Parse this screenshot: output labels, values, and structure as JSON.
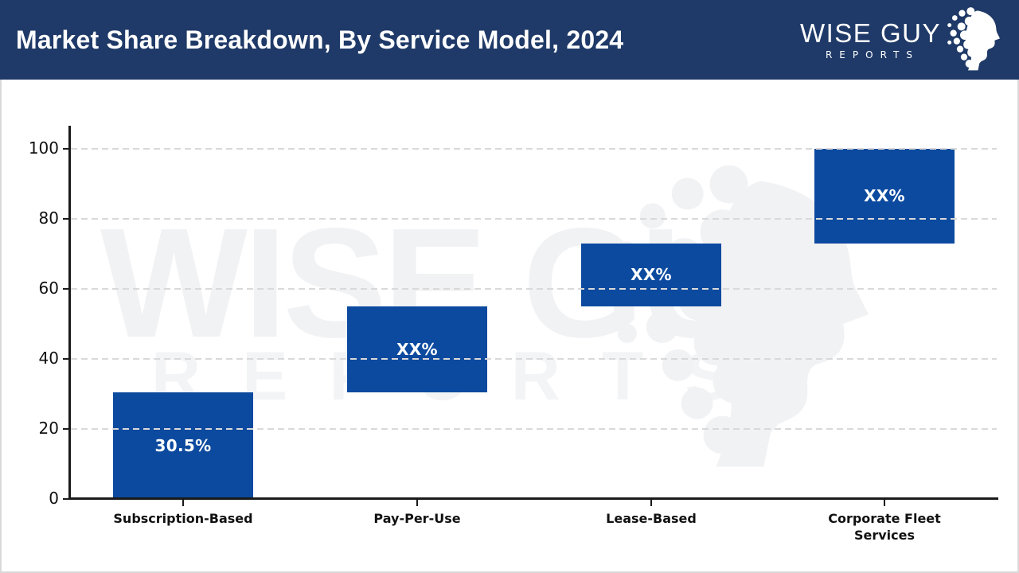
{
  "header": {
    "title": "Market Share Breakdown, By Service Model, 2024",
    "bg_color": "#1f3a68",
    "logo": {
      "name": "WISE GUY",
      "sub": "REPORTS",
      "face_icon": "dotted-face-profile"
    }
  },
  "watermark": {
    "name": "WISE GUY",
    "sub": "REPORTS",
    "face_icon": "dotted-face-profile"
  },
  "chart_data": {
    "type": "bar",
    "variant": "floating-segment-waterfall",
    "title": "Market Share Breakdown, By Service Model, 2024",
    "categories": [
      "Subscription-Based",
      "Pay-Per-Use",
      "Lease-Based",
      "Corporate Fleet Services"
    ],
    "series": [
      {
        "name": "Market share (%)",
        "segments": [
          {
            "category": "Subscription-Based",
            "start": 0,
            "end": 30.5,
            "label": "30.5%"
          },
          {
            "category": "Pay-Per-Use",
            "start": 30.5,
            "end": 55,
            "label": "XX%"
          },
          {
            "category": "Lease-Based",
            "start": 55,
            "end": 73,
            "label": "XX%"
          },
          {
            "category": "Corporate Fleet Services",
            "start": 73,
            "end": 100,
            "label": "XX%"
          }
        ]
      }
    ],
    "ylim": [
      0,
      100
    ],
    "yticks": [
      0,
      20,
      40,
      60,
      80,
      100
    ],
    "grid": "horizontal-dashed",
    "legend": "none",
    "bar_color": "#0c4a9f",
    "bar_label_color": "#ffffff",
    "axis_color": "#1a1a1a",
    "gridline_color": "#d9d9d9"
  }
}
